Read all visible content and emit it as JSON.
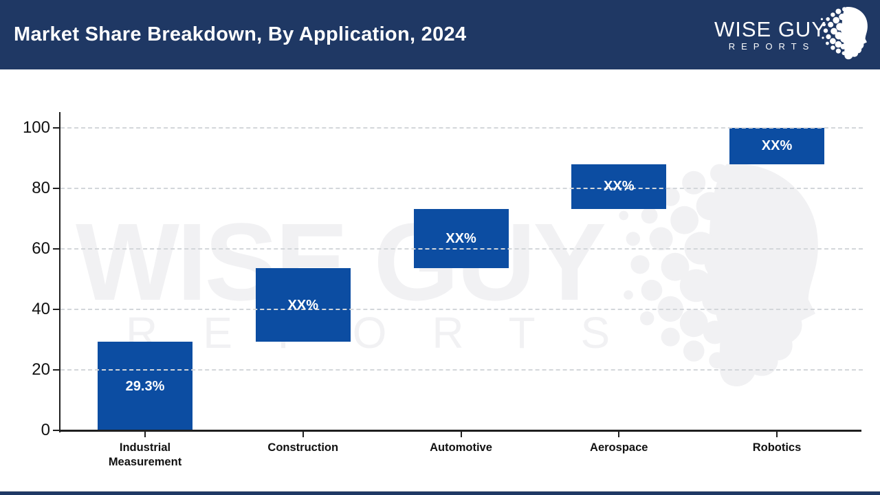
{
  "header": {
    "title": "Market Share Breakdown, By Application, 2024",
    "bg_color": "#1f3864",
    "logo": {
      "wordmark": "WISE GUY",
      "subtitle": "REPORTS"
    }
  },
  "watermark": {
    "wordmark": "WISE GUY",
    "subtitle": "REPORTS"
  },
  "chart_data": {
    "type": "bar",
    "subtype": "waterfall",
    "title": "Market Share Breakdown, By Application, 2024",
    "categories": [
      "Industrial Measurement",
      "Construction",
      "Automotive",
      "Aerospace",
      "Robotics"
    ],
    "segments": [
      {
        "category": "Industrial Measurement",
        "start": 0,
        "end": 29.3,
        "value": 29.3,
        "label": "29.3%"
      },
      {
        "category": "Construction",
        "start": 29.3,
        "end": 53.6,
        "value": 24.3,
        "label": "XX%"
      },
      {
        "category": "Automotive",
        "start": 53.6,
        "end": 73.2,
        "value": 19.6,
        "label": "XX%"
      },
      {
        "category": "Aerospace",
        "start": 73.2,
        "end": 88.0,
        "value": 14.8,
        "label": "XX%"
      },
      {
        "category": "Robotics",
        "start": 88.0,
        "end": 100.0,
        "value": 12.0,
        "label": "XX%"
      }
    ],
    "xlabel": "",
    "ylabel": "",
    "ylim": [
      0,
      100
    ],
    "yticks": [
      0,
      20,
      40,
      60,
      80,
      100
    ],
    "grid": "horizontal-dashed",
    "legend": null,
    "bar_color": "#0c4da2",
    "bar_label_color": "#ffffff",
    "axis_color": "#1f1f1f",
    "gridline_color": "#d3d6da"
  }
}
